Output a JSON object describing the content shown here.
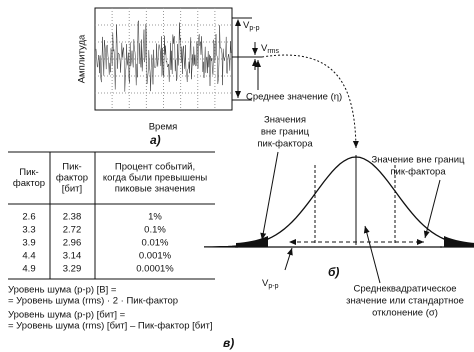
{
  "panel_a": {
    "y_axis_label": "Амплитуда",
    "x_axis_label": "Время",
    "tag": "а)",
    "vpp": {
      "main": "V",
      "sub": "p-p"
    },
    "vrms": {
      "main": "V",
      "sub": "rms"
    },
    "mean_label": "Среднее значение (η)"
  },
  "table": {
    "headers": [
      [
        "Пик-",
        "фактор"
      ],
      [
        "Пик-",
        "фактор",
        "[бит]"
      ],
      [
        "Процент событий,",
        "когда были превышены",
        "пиковые значения"
      ]
    ],
    "rows": [
      [
        "2.6",
        "2.38",
        "1%"
      ],
      [
        "3.3",
        "2.72",
        "0.1%"
      ],
      [
        "3.9",
        "2.96",
        "0.01%"
      ],
      [
        "4.4",
        "3.14",
        "0.001%"
      ],
      [
        "4.9",
        "3.29",
        "0.0001%"
      ]
    ]
  },
  "formulas": [
    [
      "Уровень шума (p-p) [В] =",
      "= Уровень шума (rms) · 2 · Пик-фактор"
    ],
    [
      "Уровень шума (p-p) [бит] =",
      "= Уровень шума (rms) [бит] – Пик-фактор [бит]"
    ]
  ],
  "panel_v_tag": "в)",
  "panel_b": {
    "tag": "б)",
    "left_label": [
      "Значения",
      "вне границ",
      "пик-фактора"
    ],
    "right_label": [
      "Значение вне границ",
      "пик-фактора"
    ],
    "vpp": {
      "main": "V",
      "sub": "p-p"
    },
    "sigma_label": [
      "Среднеквадратическое",
      "значение или стандартное",
      "отклонение (σ)"
    ]
  }
}
